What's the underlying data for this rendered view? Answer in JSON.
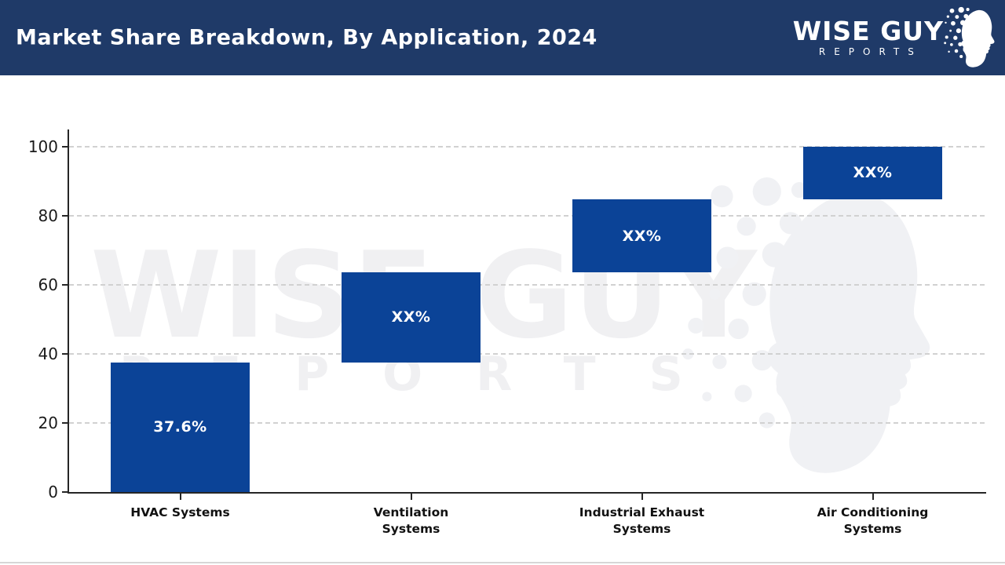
{
  "header": {
    "title": "Market Share Breakdown, By Application, 2024",
    "logo": {
      "line1": "WISE GUY",
      "line2": "REPORTS"
    }
  },
  "watermark": {
    "line1": "WISE GUY",
    "line2": "REPORTS"
  },
  "colors": {
    "header_bg": "#1f3a68",
    "bar": "#0b4397",
    "grid": "#d1d1d1",
    "axis": "#262626",
    "bar_label": "#ffffff",
    "watermark": "#f0f0f2"
  },
  "chart_data": {
    "type": "bar",
    "subtype": "waterfall",
    "title": "Market Share Breakdown, By Application, 2024",
    "categories": [
      [
        "HVAC Systems"
      ],
      [
        "Ventilation",
        "Systems"
      ],
      [
        "Industrial Exhaust",
        "Systems"
      ],
      [
        "Air Conditioning",
        "Systems"
      ]
    ],
    "segments": [
      {
        "start": 0,
        "end": 37.6,
        "label": "37.6%"
      },
      {
        "start": 37.6,
        "end": 63.6,
        "label": "XX%"
      },
      {
        "start": 63.6,
        "end": 84.8,
        "label": "XX%"
      },
      {
        "start": 84.8,
        "end": 100,
        "label": "XX%"
      }
    ],
    "yticks": [
      0,
      20,
      40,
      60,
      80,
      100
    ],
    "ylim": [
      0,
      105
    ],
    "xlabel": "",
    "ylabel": "",
    "grid": "horizontal-dashed",
    "legend": "none",
    "bar_color": "#0b4397"
  }
}
